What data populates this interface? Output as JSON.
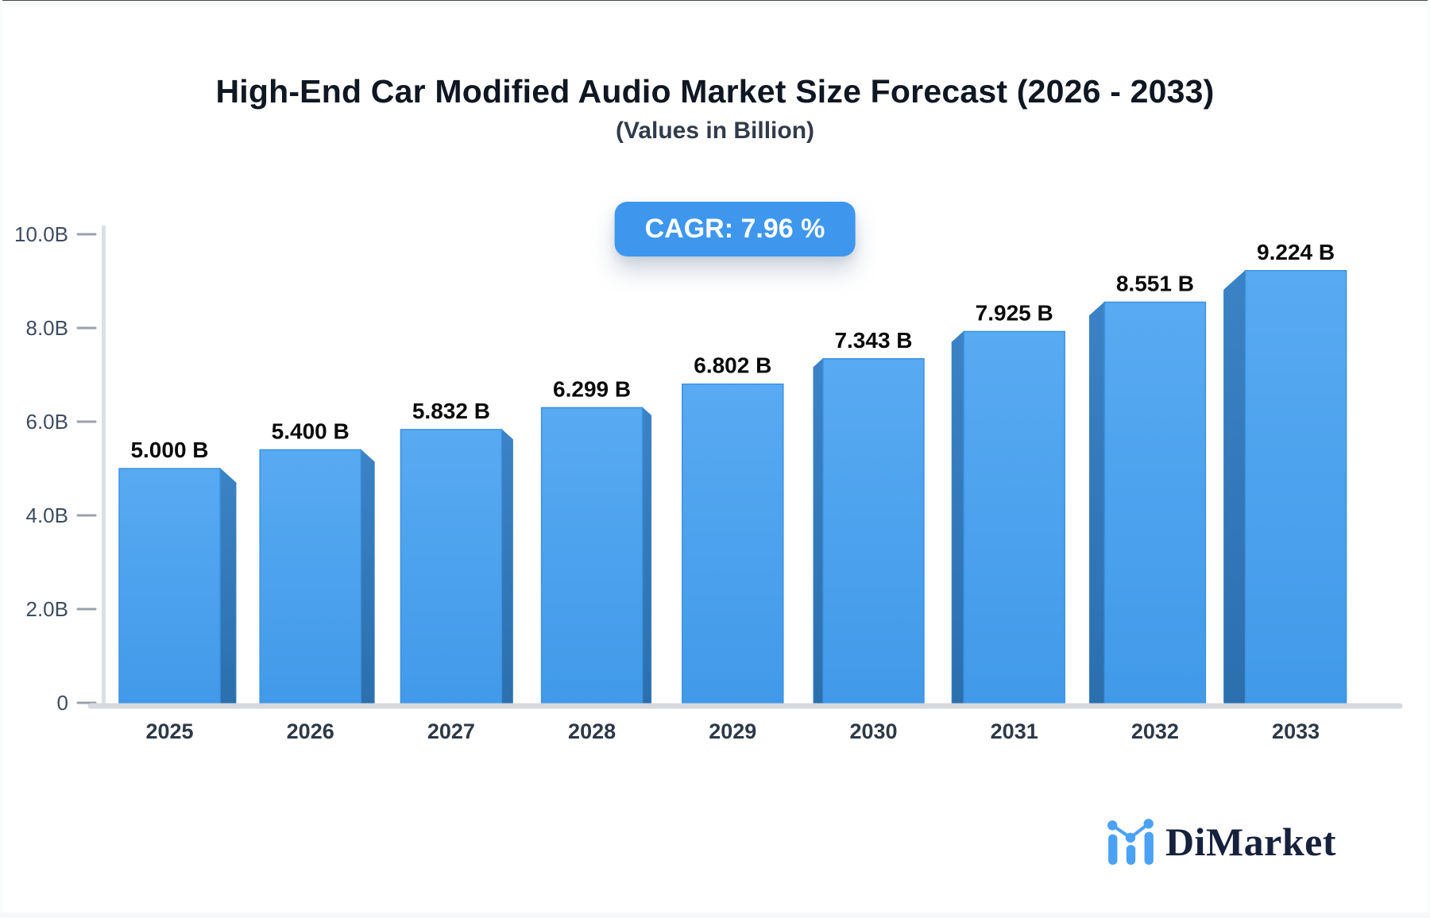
{
  "header": {
    "title": "High-End Car Modified Audio Market Size Forecast (2026 - 2033)",
    "subtitle": "(Values in Billion)"
  },
  "badge": {
    "label": "CAGR: 7.96 %",
    "background_color": "#3e97ed",
    "text_color": "#ffffff"
  },
  "chart_data": {
    "type": "bar",
    "title": "High-End Car Modified Audio Market Size Forecast (2026 - 2033)",
    "subtitle": "(Values in Billion)",
    "categories": [
      "2025",
      "2026",
      "2027",
      "2028",
      "2029",
      "2030",
      "2031",
      "2032",
      "2033"
    ],
    "values": [
      5.0,
      5.4,
      5.832,
      6.299,
      6.802,
      7.343,
      7.925,
      8.551,
      9.224
    ],
    "value_labels": [
      "5.000 B",
      "5.400 B",
      "5.832 B",
      "6.299 B",
      "6.802 B",
      "7.343 B",
      "7.925 B",
      "8.551 B",
      "9.224 B"
    ],
    "y_ticks": [
      {
        "label": "10.0B",
        "value": 10
      },
      {
        "label": "8.0B",
        "value": 8
      },
      {
        "label": "6.0B",
        "value": 6
      },
      {
        "label": "4.0B",
        "value": 4
      },
      {
        "label": "2.0B",
        "value": 2
      },
      {
        "label": "0",
        "value": 0
      }
    ],
    "ylim": [
      0,
      10
    ],
    "xlabel": "",
    "ylabel": "",
    "grid": "off",
    "legend": "none",
    "effect": "3d-perspective-columns",
    "colors": {
      "bar_face_top": "#58aaf2",
      "bar_face_bottom": "#419ae9",
      "bar_face_stroke": "#3e92df",
      "bar_side_top": "#3b83c6",
      "bar_side_bottom": "#2b6fad",
      "axis_line": "#dce0e5",
      "baseline": "#d6d9de",
      "tick_dash": "#9aa1ab",
      "tick_text": "#3e4c61",
      "year_text": "#2e3947",
      "value_text": "#0a0a0a"
    }
  },
  "logo": {
    "text": "DiMarket",
    "icon": "bar-line-chart-icon",
    "icon_color": "#4ba2f4",
    "text_color": "#16213c"
  }
}
